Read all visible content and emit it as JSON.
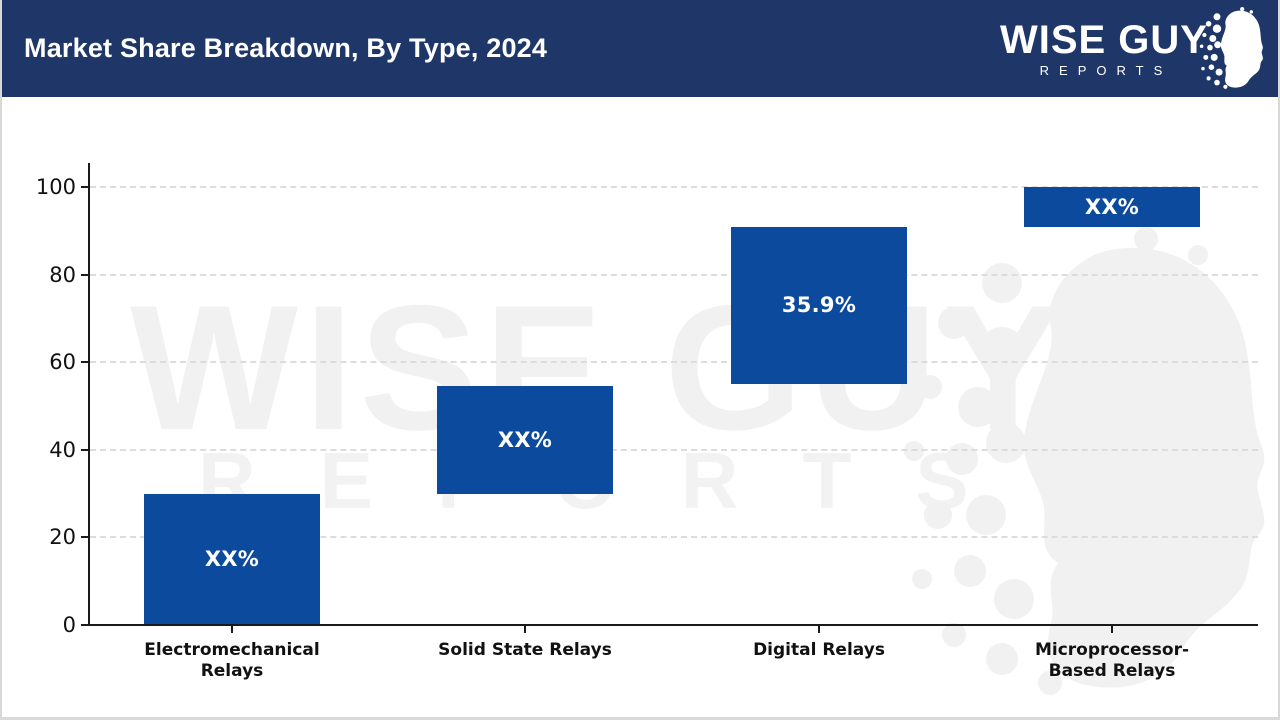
{
  "header": {
    "title": "Market Share Breakdown, By Type, 2024",
    "logo": {
      "line1": "WISE GUY",
      "line2": "REPORTS"
    }
  },
  "watermark": {
    "line1": "WISE GUY",
    "line2": "REPORTS"
  },
  "chart_data": {
    "type": "bar",
    "subtype": "floating-waterfall",
    "title": "Market Share Breakdown, By Type, 2024",
    "categories": [
      "Electromechanical\nRelays",
      "Solid State Relays",
      "Digital Relays",
      "Microprocessor-\nBased Relays"
    ],
    "bars": [
      {
        "category": "Electromechanical Relays",
        "start": 0,
        "end": 30,
        "label": "XX%"
      },
      {
        "category": "Solid State Relays",
        "start": 30,
        "end": 54.5,
        "label": "XX%"
      },
      {
        "category": "Digital Relays",
        "start": 55,
        "end": 90.9,
        "label": "35.9%"
      },
      {
        "category": "Microprocessor-Based Relays",
        "start": 90.9,
        "end": 100,
        "label": "XX%"
      }
    ],
    "yticks": [
      0,
      20,
      40,
      60,
      80,
      100
    ],
    "ylim": [
      0,
      105
    ],
    "xlabel": "",
    "ylabel": "",
    "grid": {
      "axis": "y",
      "style": "dashed",
      "color": "#dcdcdc"
    },
    "legend": "none",
    "bar_color": "#0c4a9e",
    "value_label_color": "#ffffff"
  },
  "colors": {
    "header_bg": "#1f3768",
    "bar": "#0c4a9e",
    "axis": "#1a1a1a",
    "watermark": "#f1f1f1",
    "page_border": "#d9d9d9"
  }
}
